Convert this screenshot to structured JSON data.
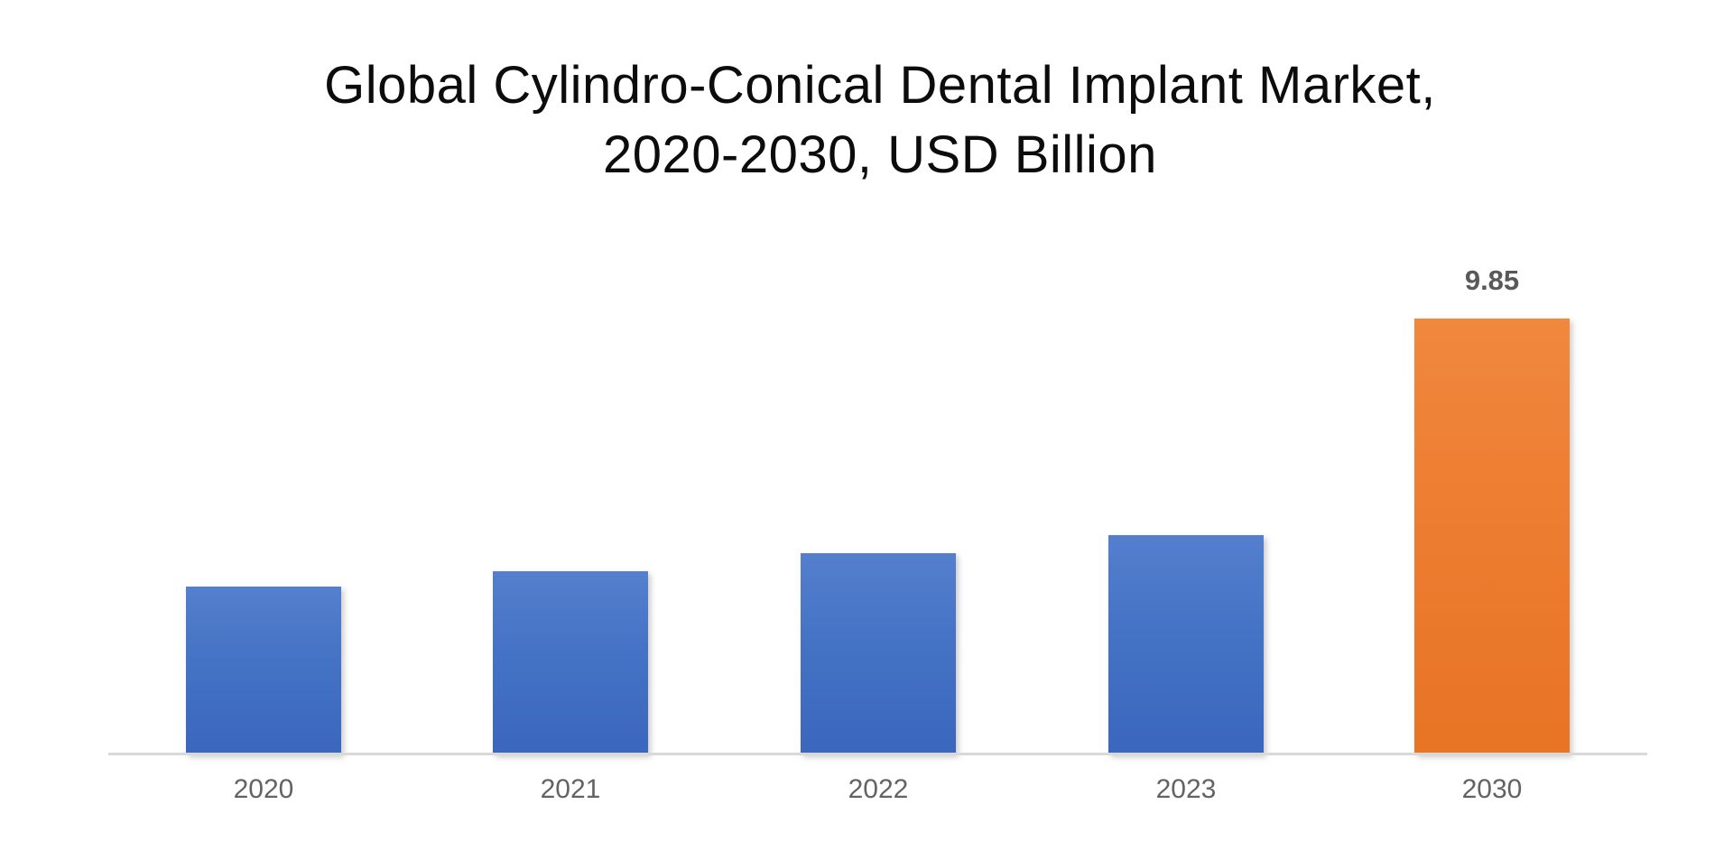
{
  "title": {
    "line1": "Global Cylindro-Conical Dental Implant Market,",
    "line2": "2020-2030, USD Billion"
  },
  "chart_data": {
    "type": "bar",
    "title": "Global Cylindro-Conical Dental Implant Market, 2020-2030, USD Billion",
    "unit": "USD Billion",
    "categories": [
      "2020",
      "2021",
      "2022",
      "2023",
      "2030"
    ],
    "values": [
      3.8,
      4.15,
      4.55,
      4.95,
      9.85
    ],
    "data_labels": [
      "",
      "",
      "",
      "",
      "9.85"
    ],
    "ylim": [
      0,
      10.5
    ],
    "grid": false,
    "legend": "none",
    "bar_colors": [
      "#4472C4",
      "#4472C4",
      "#4472C4",
      "#4472C4",
      "#ED7D31"
    ],
    "base_color": "#4472C4",
    "highlight_color": "#ED7D31",
    "axis_line_color": "#D9D9D9",
    "data_label_color": "#595959",
    "x_label_color": "#636363",
    "background": "#FFFFFF"
  }
}
